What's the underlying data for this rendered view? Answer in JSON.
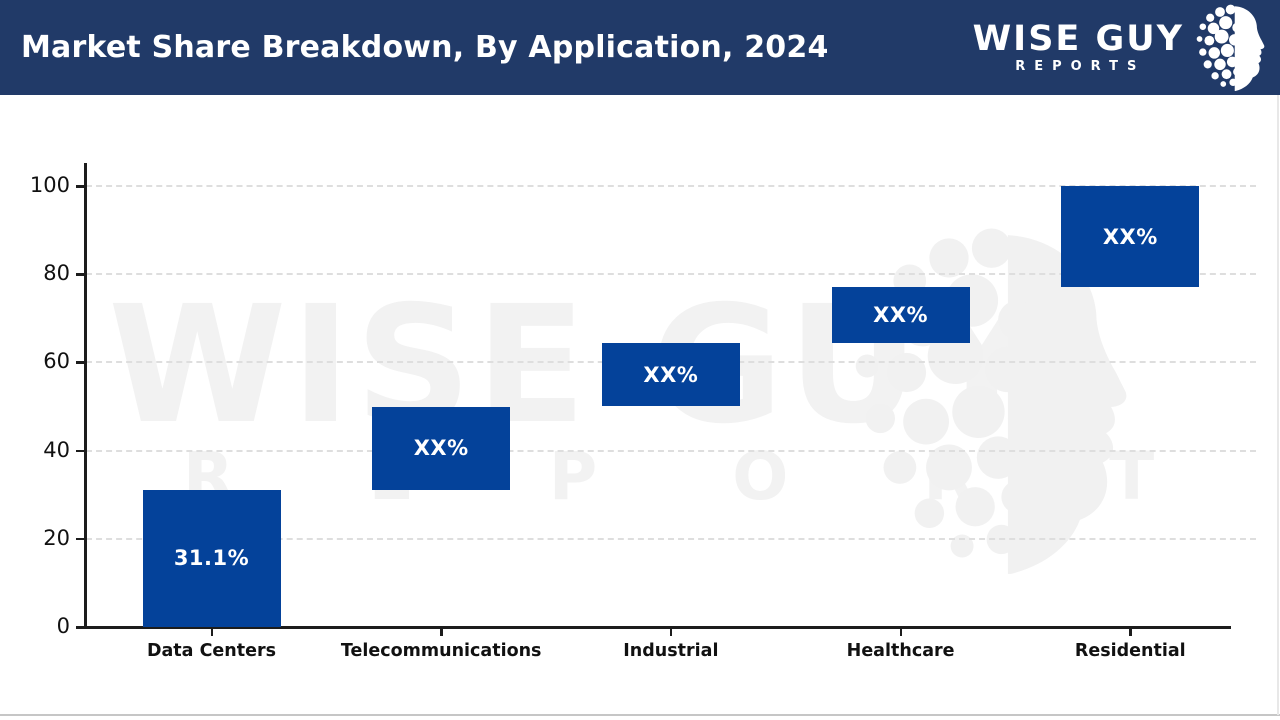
{
  "header": {
    "title": "Market Share Breakdown, By Application, 2024",
    "bg_color": "#213A68",
    "logo": {
      "line1": "WISE GUY",
      "line2": "REPORTS",
      "face_icon": "dotted-head-profile"
    }
  },
  "watermark": {
    "line1": "WISE GUY",
    "line2": "R E P O R T S"
  },
  "chart_data": {
    "type": "bar",
    "subtype": "waterfall",
    "title": "Market Share Breakdown, By Application, 2024",
    "categories": [
      "Data Centers",
      "Telecommunications",
      "Industrial",
      "Healthcare",
      "Residential"
    ],
    "segments": [
      {
        "category": "Data Centers",
        "start": 0,
        "end": 31.1,
        "label": "31.1%"
      },
      {
        "category": "Telecommunications",
        "start": 31.1,
        "end": 50,
        "label": "XX%"
      },
      {
        "category": "Industrial",
        "start": 50,
        "end": 64.5,
        "label": "XX%"
      },
      {
        "category": "Healthcare",
        "start": 64.5,
        "end": 77,
        "label": "XX%"
      },
      {
        "category": "Residential",
        "start": 77,
        "end": 100,
        "label": "XX%"
      }
    ],
    "xlabel": "",
    "ylabel": "",
    "ylim": [
      0,
      100
    ],
    "yticks": [
      0,
      20,
      40,
      60,
      80,
      100
    ],
    "grid": "horizontal-dashed",
    "legend": "none",
    "bar_color": "#04429A",
    "bar_label_color": "#ffffff",
    "axis_color": "#1c1c1c",
    "gridline_color": "#dedede"
  }
}
